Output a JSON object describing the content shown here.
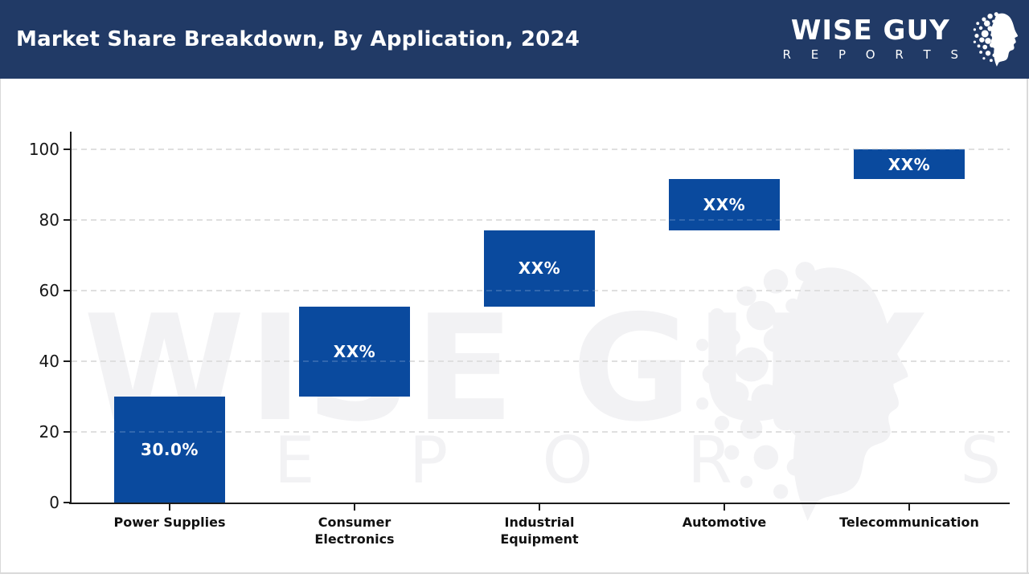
{
  "header": {
    "title": "Market Share Breakdown, By Application, 2024",
    "brand": {
      "name": "WISE GUY",
      "sub": "R E P O R T S"
    },
    "bg_color": "#213a66"
  },
  "watermark": {
    "name": "WISE GUY",
    "sub": "R E P O R T S",
    "color": "#f2f2f4"
  },
  "chart_data": {
    "type": "bar",
    "subtype": "floating_segment_waterfall",
    "title": "Market Share Breakdown, By Application, 2024",
    "categories": [
      "Power Supplies",
      "Consumer Electronics",
      "Industrial Equipment",
      "Automotive",
      "Telecommunication"
    ],
    "series": [
      {
        "name": "Market share (%)",
        "segments": [
          {
            "start": 0,
            "end": 30,
            "label": "30.0%"
          },
          {
            "start": 30,
            "end": 55.5,
            "label": "XX%"
          },
          {
            "start": 55.5,
            "end": 77,
            "label": "XX%"
          },
          {
            "start": 77,
            "end": 91.5,
            "label": "XX%"
          },
          {
            "start": 91.5,
            "end": 100,
            "label": "XX%"
          }
        ]
      }
    ],
    "xlabel": "",
    "ylabel": "",
    "ylim": [
      0,
      100
    ],
    "yticks": [
      0,
      20,
      40,
      60,
      80,
      100
    ],
    "grid": "horizontal_dashed",
    "legend": "none",
    "colors": {
      "bar": "#0a4a9e",
      "bar_label": "#ffffff",
      "axis": "#1c1c1c",
      "grid": "#d9d9d9",
      "header_bg": "#213a66",
      "watermark": "#f2f2f4"
    }
  }
}
